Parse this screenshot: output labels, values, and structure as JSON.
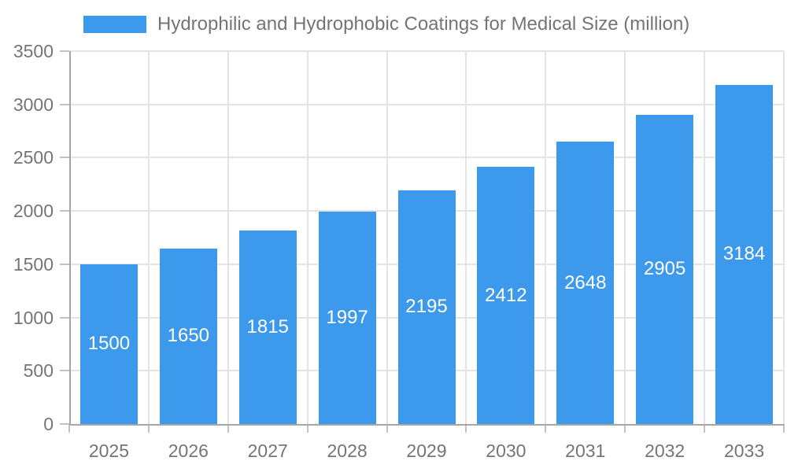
{
  "legend": {
    "label": "Hydrophilic and Hydrophobic Coatings for Medical Size (million)"
  },
  "colors": {
    "bar": "#3C99EC",
    "grid": "#E4E4E4",
    "axis": "#A6A6A6",
    "tick": "#C2C2C2",
    "tick_text": "#757575",
    "value_text": "#FFFFFF",
    "background": "#FFFFFF"
  },
  "chart_data": {
    "type": "bar",
    "title": "Hydrophilic and Hydrophobic Coatings for Medical Size (million)",
    "categories": [
      "2025",
      "2026",
      "2027",
      "2028",
      "2029",
      "2030",
      "2031",
      "2032",
      "2033"
    ],
    "values": [
      1500,
      1650,
      1815,
      1997,
      2195,
      2412,
      2648,
      2905,
      3184
    ],
    "xlabel": "",
    "ylabel": "",
    "ylim": [
      0,
      3500
    ],
    "yticks": [
      0,
      500,
      1000,
      1500,
      2000,
      2500,
      3000,
      3500
    ],
    "grid": true,
    "legend_position": "top",
    "value_label_position": "inside-center"
  }
}
